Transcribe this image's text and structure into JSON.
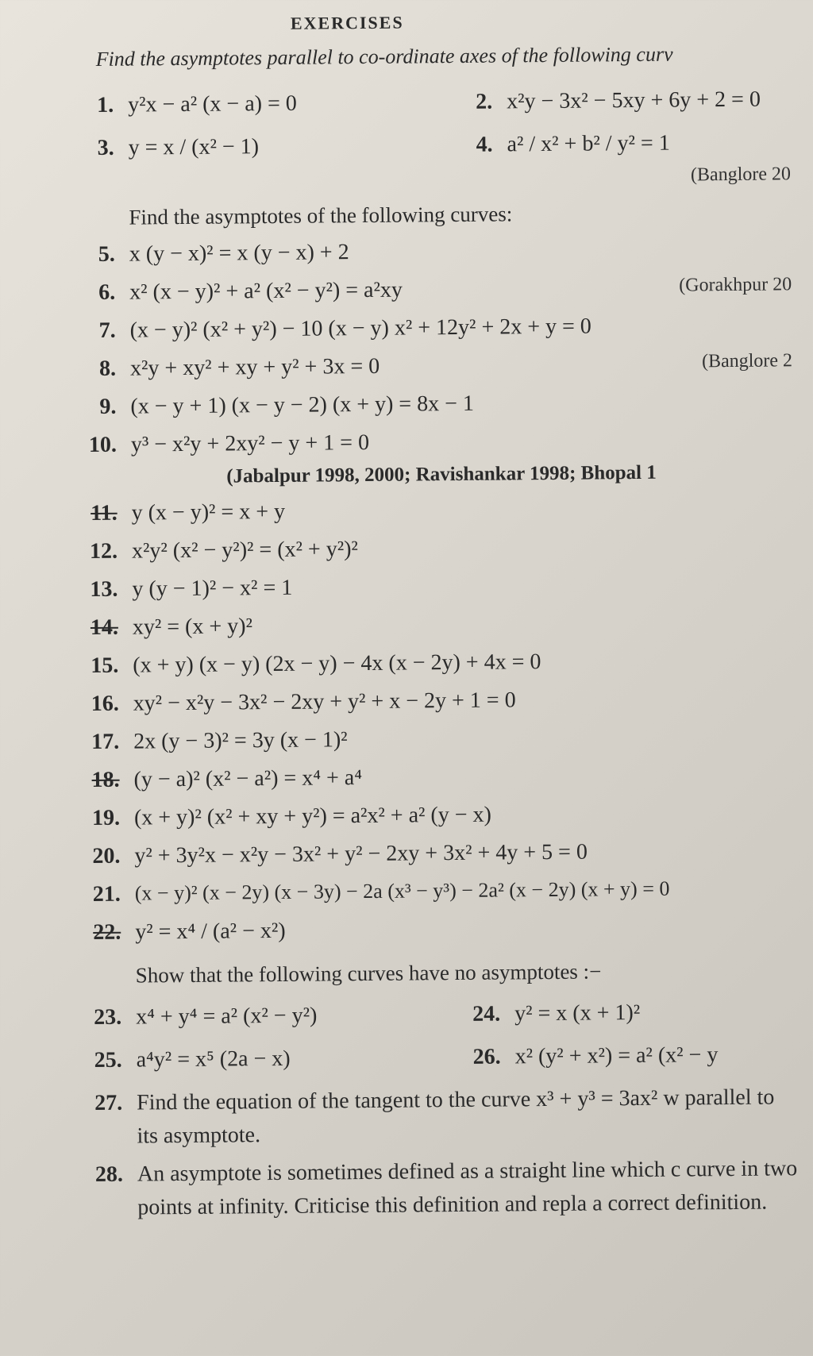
{
  "header": "EXERCISES",
  "section1_intro": "Find the asymptotes parallel to co-ordinate axes of the following curv",
  "q1": {
    "num": "1.",
    "eq": "y²x − a² (x − a) = 0"
  },
  "q2": {
    "num": "2.",
    "eq": "x²y − 3x² − 5xy + 6y + 2 = 0"
  },
  "q3": {
    "num": "3.",
    "eq": "y = x / (x² − 1)"
  },
  "q4": {
    "num": "4.",
    "eq": "a² / x² + b² / y² = 1"
  },
  "annot_banglore20": "(Banglore 20",
  "section2_intro": "Find the asymptotes of the following curves:",
  "q5": {
    "num": "5.",
    "eq": "x (y − x)² = x (y − x) + 2"
  },
  "q6": {
    "num": "6.",
    "eq": "x² (x − y)² + a² (x² − y²) = a²xy",
    "annot": "(Gorakhpur 20"
  },
  "q7": {
    "num": "7.",
    "eq": "(x − y)² (x² + y²) − 10 (x − y) x² + 12y² + 2x + y = 0"
  },
  "q8": {
    "num": "8.",
    "eq": "x²y + xy² + xy + y² + 3x = 0",
    "annot": "(Banglore 2"
  },
  "q9": {
    "num": "9.",
    "eq": "(x − y + 1) (x − y − 2) (x + y) = 8x − 1"
  },
  "q10": {
    "num": "10.",
    "eq": "y³ − x²y + 2xy² − y + 1 = 0"
  },
  "citation": "(Jabalpur 1998, 2000; Ravishankar 1998; Bhopal 1",
  "q11": {
    "num": "11.",
    "eq": "y (x − y)² = x + y"
  },
  "q12": {
    "num": "12.",
    "eq": "x²y² (x² − y²)² = (x² + y²)²"
  },
  "q13": {
    "num": "13.",
    "eq": "y (y − 1)² − x² = 1"
  },
  "q14": {
    "num": "14.",
    "eq": "xy² = (x + y)²"
  },
  "q15": {
    "num": "15.",
    "eq": "(x + y) (x − y) (2x − y) − 4x (x − 2y) + 4x = 0"
  },
  "q16": {
    "num": "16.",
    "eq": "xy² − x²y − 3x² − 2xy + y² + x − 2y + 1 = 0"
  },
  "q17": {
    "num": "17.",
    "eq": "2x (y − 3)² = 3y (x − 1)²"
  },
  "q18": {
    "num": "18.",
    "eq": "(y − a)² (x² − a²) = x⁴ + a⁴"
  },
  "q19": {
    "num": "19.",
    "eq": "(x + y)² (x² + xy + y²) = a²x² + a² (y − x)"
  },
  "q20": {
    "num": "20.",
    "eq": "y² + 3y²x − x²y − 3x² + y² − 2xy + 3x² + 4y + 5 = 0"
  },
  "q21": {
    "num": "21.",
    "eq": "(x − y)² (x − 2y) (x − 3y) − 2a (x³ − y³) − 2a² (x − 2y) (x + y) = 0"
  },
  "q22": {
    "num": "22.",
    "eq": "y² = x⁴ / (a² − x²)"
  },
  "section3_intro": "Show that the following curves have no asymptotes :−",
  "q23": {
    "num": "23.",
    "eq": "x⁴ + y⁴ = a² (x² − y²)"
  },
  "q24": {
    "num": "24.",
    "eq": "y² = x (x + 1)²"
  },
  "q25": {
    "num": "25.",
    "eq": "a⁴y² = x⁵ (2a − x)"
  },
  "q26": {
    "num": "26.",
    "eq": "x² (y² + x²) = a² (x² − y"
  },
  "q27": {
    "num": "27.",
    "eq": "Find the equation of the tangent to the curve x³ + y³ = 3ax² w parallel to its asymptote."
  },
  "q28": {
    "num": "28.",
    "eq": "An asymptote is sometimes defined as a straight line which c curve in two points at infinity. Criticise this definition and repla a correct definition."
  }
}
